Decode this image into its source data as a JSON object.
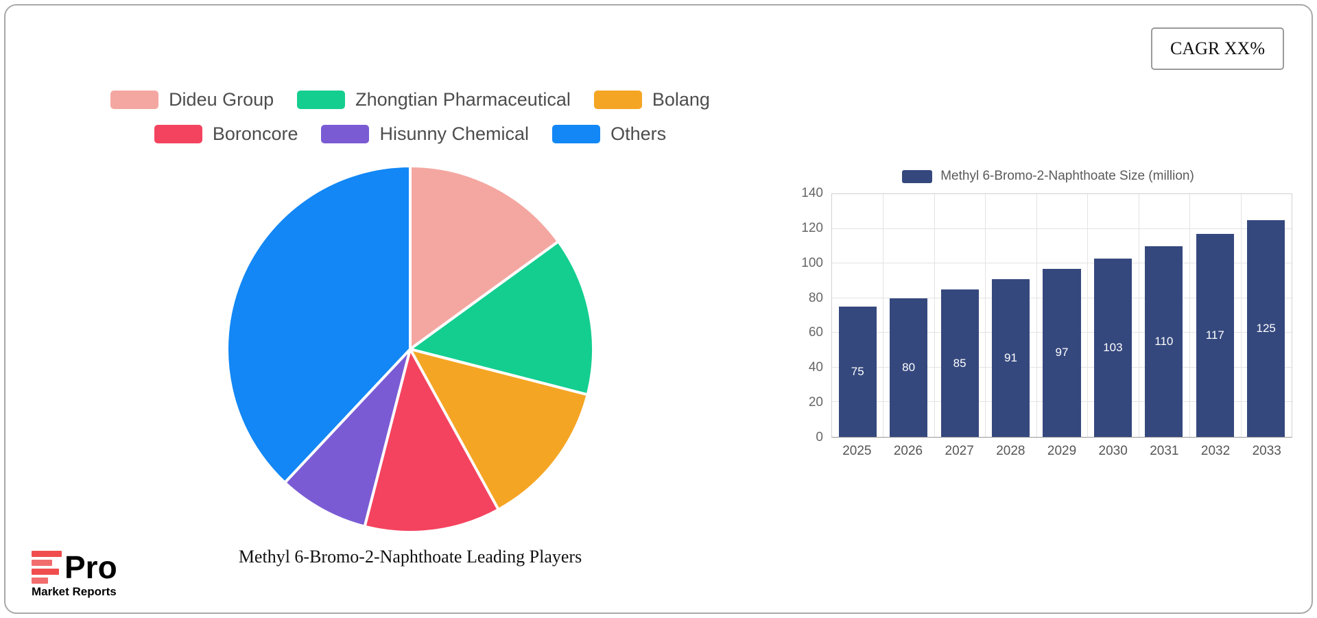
{
  "cagr": {
    "label": "CAGR XX%"
  },
  "logo": {
    "title": "Pro",
    "subtitle": "Market Reports"
  },
  "chart_data": [
    {
      "type": "pie",
      "title": "Methyl 6-Bromo-2-Naphthoate Leading Players",
      "labels": [
        "Dideu Group",
        "Zhongtian Pharmaceutical",
        "Bolang",
        "Boroncore",
        "Hisunny Chemical",
        "Others"
      ],
      "values": [
        15,
        14,
        13,
        12,
        8,
        38
      ],
      "colors": [
        "#F4A7A1",
        "#14CE90",
        "#F5A524",
        "#F4435F",
        "#7A5BD4",
        "#1287F5"
      ],
      "legend_position": "top",
      "start_angle_deg": -90,
      "direction": "clockwise",
      "slice_border_color": "#ffffff"
    },
    {
      "type": "bar",
      "legend": "Methyl 6-Bromo-2-Naphthoate Size (million)",
      "categories": [
        "2025",
        "2026",
        "2027",
        "2028",
        "2029",
        "2030",
        "2031",
        "2032",
        "2033"
      ],
      "values": [
        75,
        80,
        85,
        91,
        97,
        103,
        110,
        117,
        125
      ],
      "color": "#35487E",
      "ylim": [
        0,
        140
      ],
      "yticks": [
        0,
        20,
        40,
        60,
        80,
        100,
        120,
        140
      ],
      "grid": true,
      "value_labels": "inside-center"
    }
  ]
}
